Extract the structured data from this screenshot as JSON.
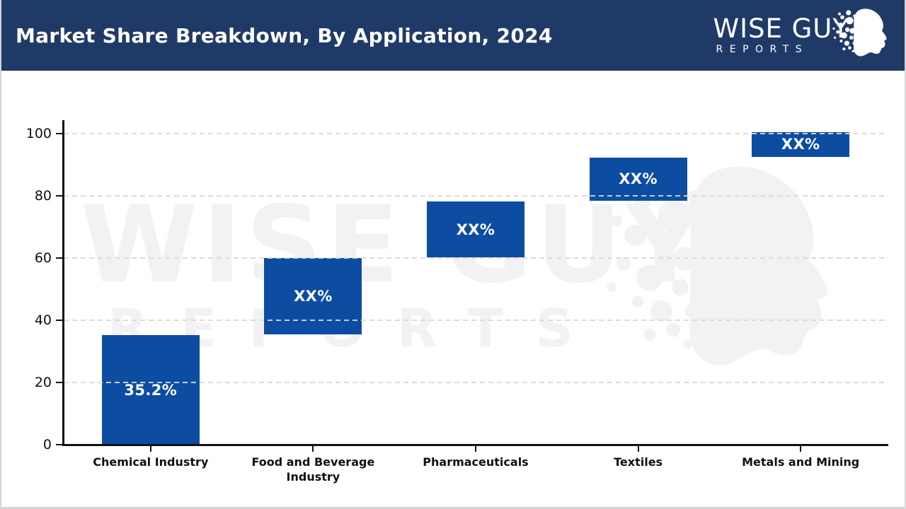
{
  "header": {
    "title": "Market Share Breakdown, By Application, 2024",
    "logo": {
      "name": "WISE GUY",
      "sub": "REPORTS"
    }
  },
  "watermark": {
    "name": "WISE GUY",
    "sub": "REPORTS"
  },
  "colors": {
    "header_bg": "#203a68",
    "bar_blue": "#0c4da2",
    "bar_label_white": "#ffffff",
    "grid_gray": "#d9d9d9",
    "axis_black": "#111111",
    "watermark_gray": "#f2f2f4",
    "page_border": "#d6d6d6"
  },
  "chart_data": {
    "type": "bar",
    "subtype": "waterfall",
    "title": "Market Share Breakdown, By Application, 2024",
    "categories": [
      "Chemical Industry",
      "Food and Beverage Industry",
      "Pharmaceuticals",
      "Textiles",
      "Metals and Mining"
    ],
    "segments": [
      {
        "category": "Chemical Industry",
        "base": 0,
        "top": 35.2,
        "label": "35.2%"
      },
      {
        "category": "Food and Beverage Industry",
        "base": 35.5,
        "top": 60.0,
        "label": "XX%"
      },
      {
        "category": "Pharmaceuticals",
        "base": 60.2,
        "top": 78.2,
        "label": "XX%"
      },
      {
        "category": "Textiles",
        "base": 78.4,
        "top": 92.3,
        "label": "XX%"
      },
      {
        "category": "Metals and Mining",
        "base": 92.5,
        "top": 100.5,
        "label": "XX%"
      }
    ],
    "xlabel": "",
    "ylabel": "",
    "yticks": [
      0,
      20,
      40,
      60,
      80,
      100
    ],
    "ylim": [
      0,
      104.5
    ],
    "grid": "horizontal-dashed",
    "legend": null,
    "bar_value_labels_inside": true
  }
}
